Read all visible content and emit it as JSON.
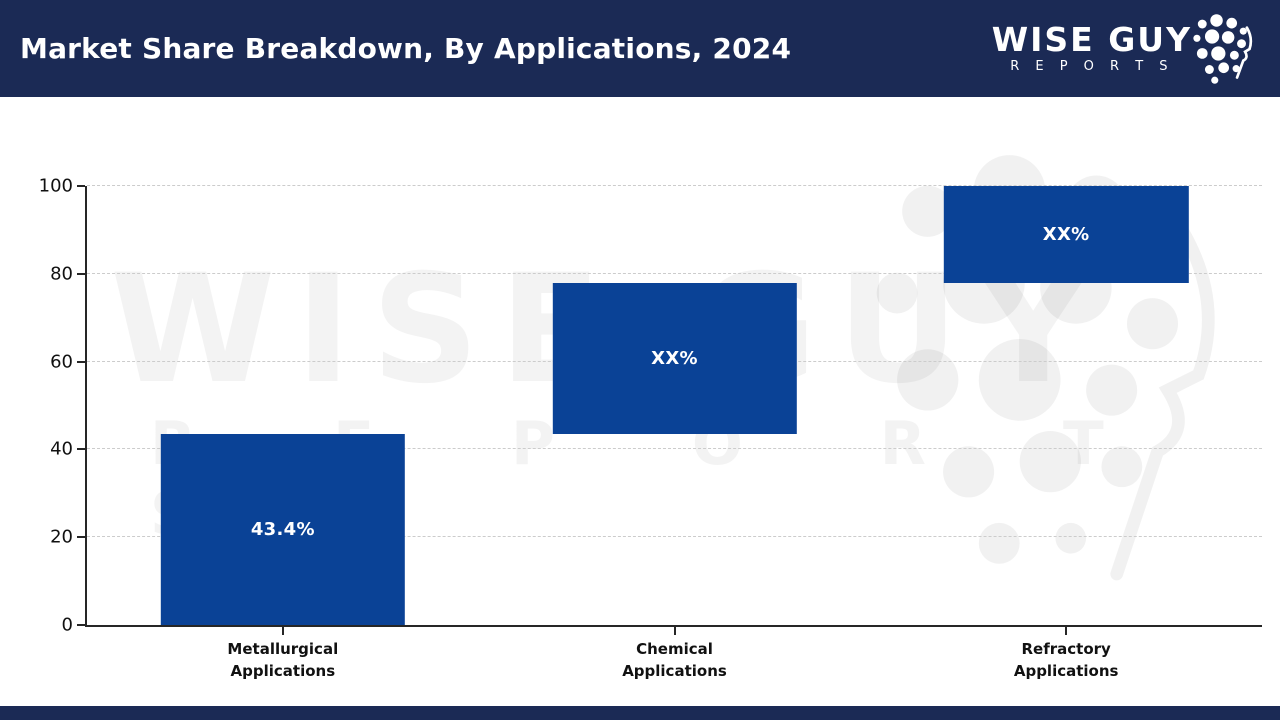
{
  "header": {
    "title": "Market Share Breakdown, By Applications, 2024",
    "logo": {
      "line1": "WISE GUY",
      "line2": "R E P O R T S"
    }
  },
  "watermark": {
    "line1": "WISE GUY",
    "line2": "R E P O R T S"
  },
  "chart_data": {
    "type": "bar",
    "subtype": "stacked-waterfall-floating-bars",
    "title": "Market Share Breakdown, By Applications, 2024",
    "xlabel": "",
    "ylabel": "",
    "categories": [
      "Metallurgical\nApplications",
      "Chemical\nApplications",
      "Refractory\nApplications"
    ],
    "bars": [
      {
        "category": "Metallurgical\nApplications",
        "start": 0,
        "end": 43.4,
        "value": 43.4,
        "label": "43.4%"
      },
      {
        "category": "Chemical\nApplications",
        "start": 43.4,
        "end": 78,
        "value": 34.6,
        "label": "XX%"
      },
      {
        "category": "Refractory\nApplications",
        "start": 78,
        "end": 100,
        "value": 22,
        "label": "XX%"
      }
    ],
    "ylim": [
      0,
      100
    ],
    "yticks": [
      0,
      20,
      40,
      60,
      80,
      100
    ],
    "grid": "horizontal-dashed",
    "legend": false,
    "bar_color": "#0a4296",
    "axis_color": "#262626",
    "label_color_inside_bar": "#ffffff"
  },
  "colors": {
    "header_bg": "#1b2a55",
    "footer_bg": "#1b2a55",
    "title_text": "#ffffff",
    "bar": "#0a4296",
    "gridline": "#cccccc",
    "watermark": "#ebebeb"
  }
}
